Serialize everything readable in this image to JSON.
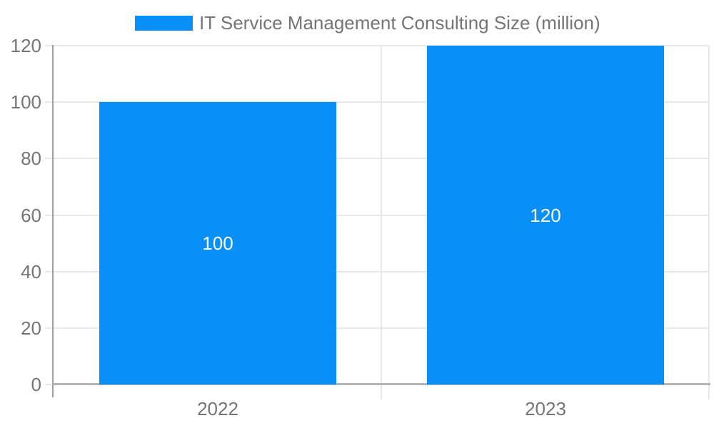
{
  "chart_data": {
    "type": "bar",
    "title": "",
    "legend": "IT Service Management Consulting Size (million)",
    "legend_position": "top",
    "categories": [
      "2022",
      "2023"
    ],
    "series": [
      {
        "name": "IT Service Management Consulting Size (million)",
        "values": [
          100,
          120
        ]
      }
    ],
    "bar_labels": [
      "100",
      "120"
    ],
    "xlabel": "",
    "ylabel": "",
    "ylim": [
      0,
      120
    ],
    "yticks": [
      0,
      20,
      40,
      60,
      80,
      100,
      120
    ],
    "grid": true,
    "style": {
      "bar_color": "#0990f8",
      "bar_label_color": "#ffffff",
      "tick_label_color": "#757575",
      "legend_text_color": "#757575",
      "grid_color": "#e8e8e8",
      "y_axis_line_color": "#9e9e9e",
      "x_axis_line_color": "#b3b3b3",
      "background_color": "#ffffff"
    }
  }
}
